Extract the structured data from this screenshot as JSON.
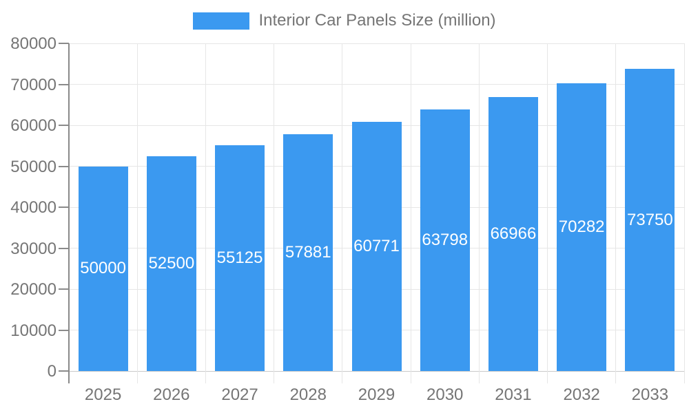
{
  "legend": {
    "label": "Interior Car Panels Size (million)"
  },
  "chart_data": {
    "type": "bar",
    "title": "",
    "legend_label": "Interior Car Panels Size (million)",
    "legend_position": "top-center",
    "categories": [
      "2025",
      "2026",
      "2027",
      "2028",
      "2029",
      "2030",
      "2031",
      "2032",
      "2033"
    ],
    "values": [
      50000,
      52500,
      55125,
      57881,
      60771,
      63798,
      66966,
      70282,
      73750
    ],
    "value_labels": [
      "50000",
      "52500",
      "55125",
      "57881",
      "60771",
      "63798",
      "66966",
      "70282",
      "73750"
    ],
    "xlabel": "",
    "ylabel": "",
    "ylim": [
      0,
      80000
    ],
    "ytick_step": 10000,
    "yticks": [
      0,
      10000,
      20000,
      30000,
      40000,
      50000,
      60000,
      70000,
      80000
    ],
    "grid": true,
    "colors": {
      "bar": "#3b99f0",
      "value_label": "#ffffff",
      "axis_text": "#757575",
      "gridline": "#e6e6e6",
      "baseline": "#c9c9c9",
      "axis_line": "#8a8a8a",
      "tick": "#8a8a8a",
      "background": "#ffffff"
    }
  }
}
